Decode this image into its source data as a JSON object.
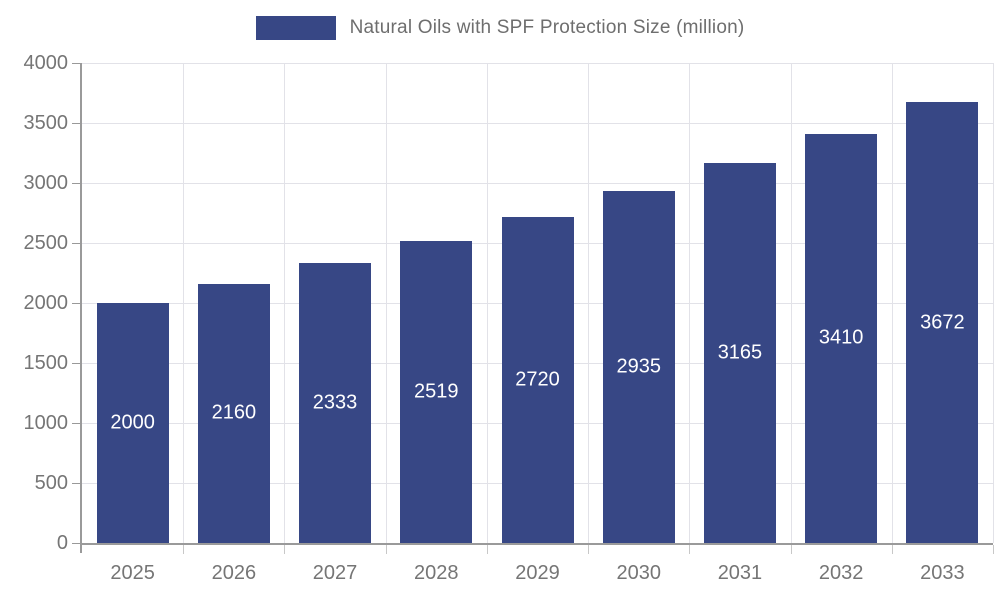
{
  "legend": {
    "label": "Natural Oils with SPF Protection Size (million)"
  },
  "colors": {
    "bar": "#374785",
    "value_label": "#ffffff",
    "axis_line": "#9a9a9a",
    "grid": "#e2e2e8",
    "x_tick": "#c8c8c8",
    "y_tick": "#999999",
    "tick_label": "#757575",
    "legend_text": "#6e6e6e",
    "background": "#ffffff"
  },
  "chart_data": {
    "type": "bar",
    "title": "Natural Oils with SPF Protection Size (million)",
    "categories": [
      "2025",
      "2026",
      "2027",
      "2028",
      "2029",
      "2030",
      "2031",
      "2032",
      "2033"
    ],
    "values": [
      2000,
      2160,
      2333,
      2519,
      2720,
      2935,
      3165,
      3410,
      3672
    ],
    "xlabel": "",
    "ylabel": "",
    "ylim": [
      0,
      4000
    ],
    "yticks": [
      0,
      500,
      1000,
      1500,
      2000,
      2500,
      3000,
      3500,
      4000
    ],
    "grid": true,
    "legend_position": "top-center",
    "value_labels": "inside-center"
  }
}
